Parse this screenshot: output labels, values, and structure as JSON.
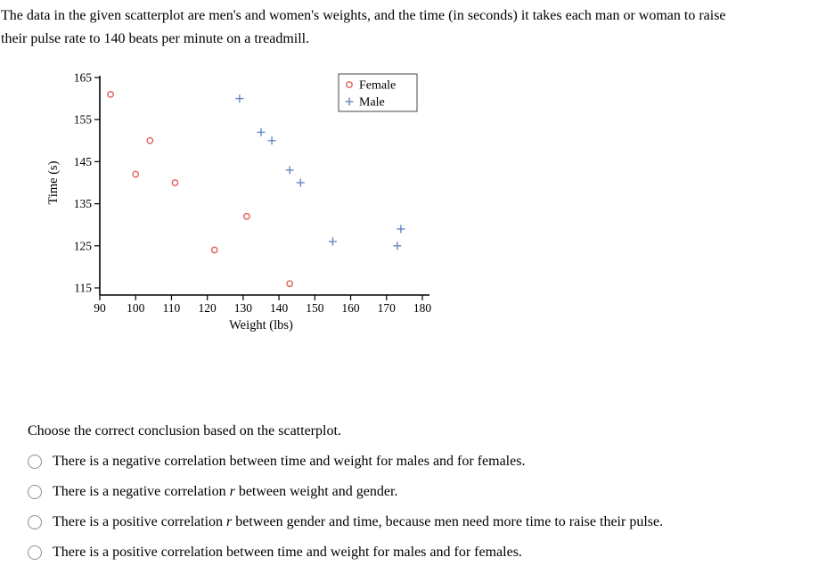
{
  "intro": {
    "line1": "The data in the given scatterplot are men's and women's weights, and the time (in seconds) it takes each man or woman to raise",
    "line2": "their pulse rate to 140 beats per minute on a treadmill."
  },
  "chart_data": {
    "type": "scatter",
    "title": "",
    "xlabel": "Weight (lbs)",
    "ylabel": "Time (s)",
    "xlim": [
      90,
      180
    ],
    "ylim": [
      115,
      165
    ],
    "xticks": [
      90,
      100,
      110,
      120,
      130,
      140,
      150,
      160,
      170,
      180
    ],
    "yticks": [
      115,
      125,
      135,
      145,
      155,
      165
    ],
    "grid": false,
    "legend": {
      "position": "top-right",
      "entries": [
        {
          "label": "Female",
          "marker": "circle",
          "color": "#e0605c"
        },
        {
          "label": "Male",
          "marker": "plus",
          "color": "#6287c5"
        }
      ]
    },
    "series": [
      {
        "name": "Female",
        "marker": "circle",
        "color": "#e0605c",
        "points": [
          [
            93,
            161
          ],
          [
            100,
            142
          ],
          [
            104,
            150
          ],
          [
            111,
            140
          ],
          [
            122,
            124
          ],
          [
            131,
            132
          ],
          [
            143,
            116
          ]
        ]
      },
      {
        "name": "Male",
        "marker": "plus",
        "color": "#6287c5",
        "points": [
          [
            129,
            160
          ],
          [
            135,
            152
          ],
          [
            138,
            150
          ],
          [
            143,
            143
          ],
          [
            146,
            140
          ],
          [
            155,
            126
          ],
          [
            173,
            125
          ],
          [
            174,
            129
          ]
        ]
      }
    ]
  },
  "question": {
    "prompt": "Choose the correct conclusion based on the scatterplot.",
    "options": [
      {
        "pre": "There is a negative correlation between time and weight for males and for females.",
        "italic": "",
        "post": ""
      },
      {
        "pre": "There is a negative correlation ",
        "italic": "r",
        "post": " between weight and gender."
      },
      {
        "pre": "There is a positive correlation ",
        "italic": "r",
        "post": " between gender and time, because men need more time to raise their pulse."
      },
      {
        "pre": "There is a positive correlation between time and weight for males and for females.",
        "italic": "",
        "post": ""
      }
    ]
  }
}
